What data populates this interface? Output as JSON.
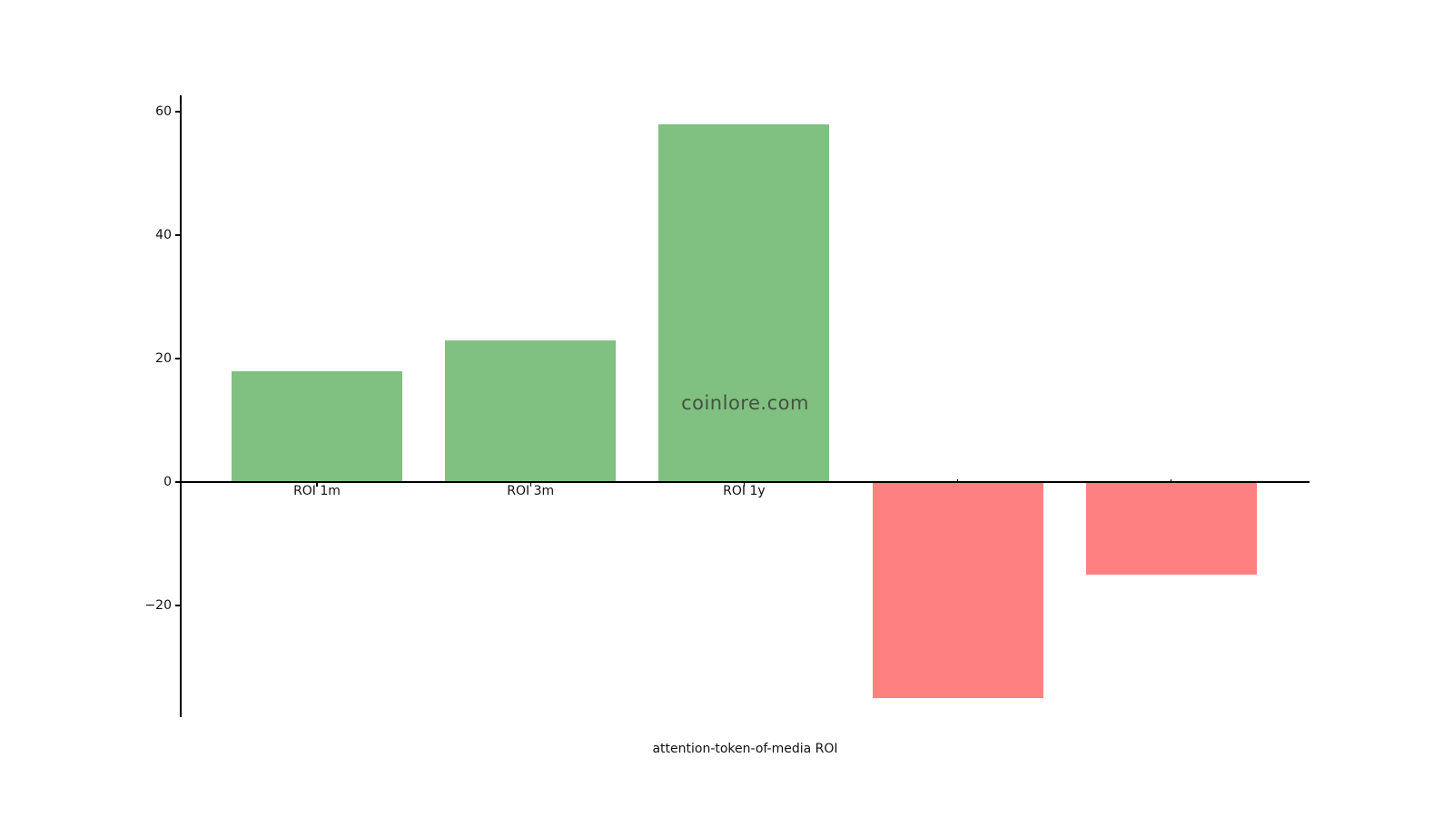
{
  "chart_data": {
    "type": "bar",
    "title": "",
    "xlabel": "attention-token-of-media ROI",
    "ylabel": "",
    "watermark": "coinlore.com",
    "categories": [
      "ROI 1m",
      "ROI 3m",
      "ROI 1y",
      "",
      ""
    ],
    "values": [
      18,
      23,
      58,
      -35,
      -15
    ],
    "bar_colors": [
      "#80c080",
      "#80c080",
      "#80c080",
      "#ff8080",
      "#ff8080"
    ],
    "positive_color": "#80c080",
    "negative_color": "#ff8080",
    "axis_color": "#000000",
    "text_color": "#111111",
    "y_ticks": [
      60,
      40,
      20,
      0,
      -20
    ],
    "y_tick_labels": [
      "60",
      "40",
      "20",
      "0",
      "−20"
    ],
    "ylim": [
      -38,
      63
    ],
    "grid": false,
    "legend": false
  }
}
